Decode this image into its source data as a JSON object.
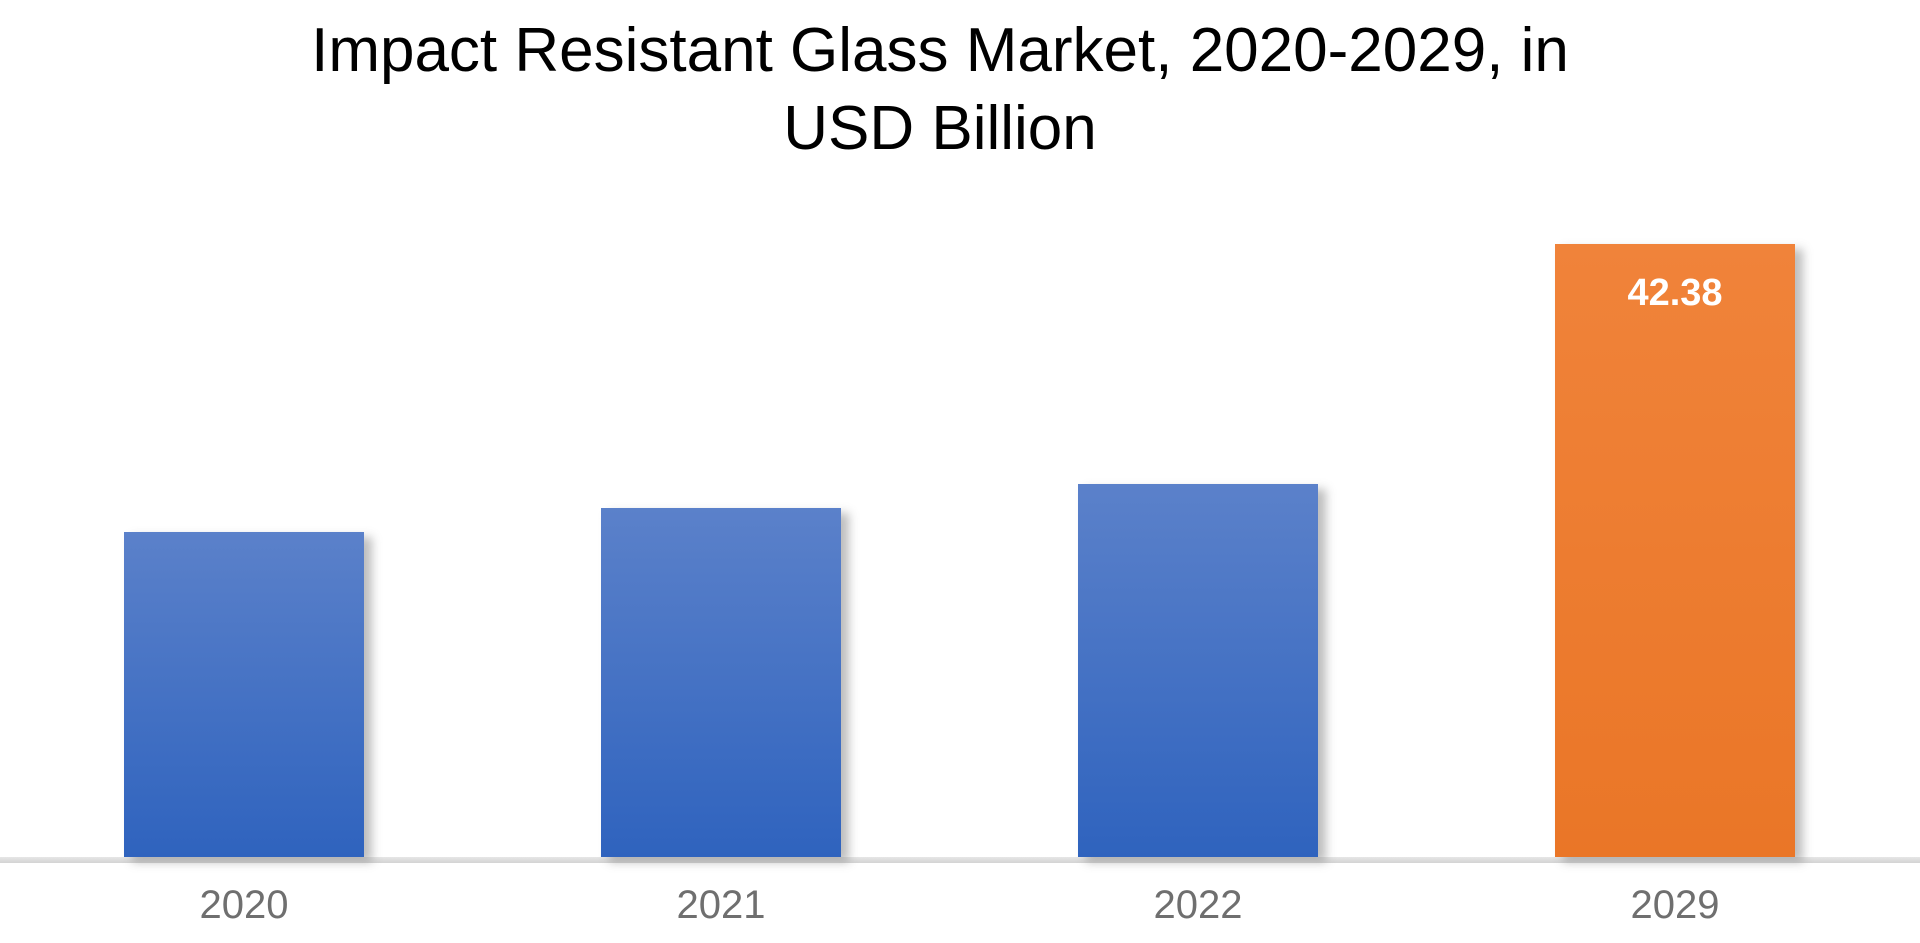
{
  "header": {
    "title_line1": "Impact Resistant Glass Market, 2020-2029, in",
    "title_line2": "USD Billion"
  },
  "colors": {
    "bar_blue_top": "#5b81ca",
    "bar_blue_bottom": "#2f63be",
    "bar_orange_top": "#f0833a",
    "bar_orange_bottom": "#ea7627",
    "axis_line": "#d9d9d9",
    "tick_label_text": "#6f6f6f",
    "data_label_text": "#ffffff",
    "title_text": "#000000"
  },
  "chart_data": {
    "type": "bar",
    "title": "Impact Resistant Glass Market, 2020-2029, in USD Billion",
    "categories": [
      "2020",
      "2021",
      "2022",
      "2029"
    ],
    "values": [
      22.5,
      24.1,
      25.8,
      42.38
    ],
    "value_labels_shown": [
      "",
      "",
      "",
      "42.38"
    ],
    "series_colors": [
      "blue",
      "blue",
      "blue",
      "orange"
    ],
    "highlighted_category": "2029",
    "xlabel": "",
    "ylabel": "",
    "units": "USD Billion",
    "ylim": [
      0,
      45
    ],
    "grid": false,
    "legend": false
  }
}
